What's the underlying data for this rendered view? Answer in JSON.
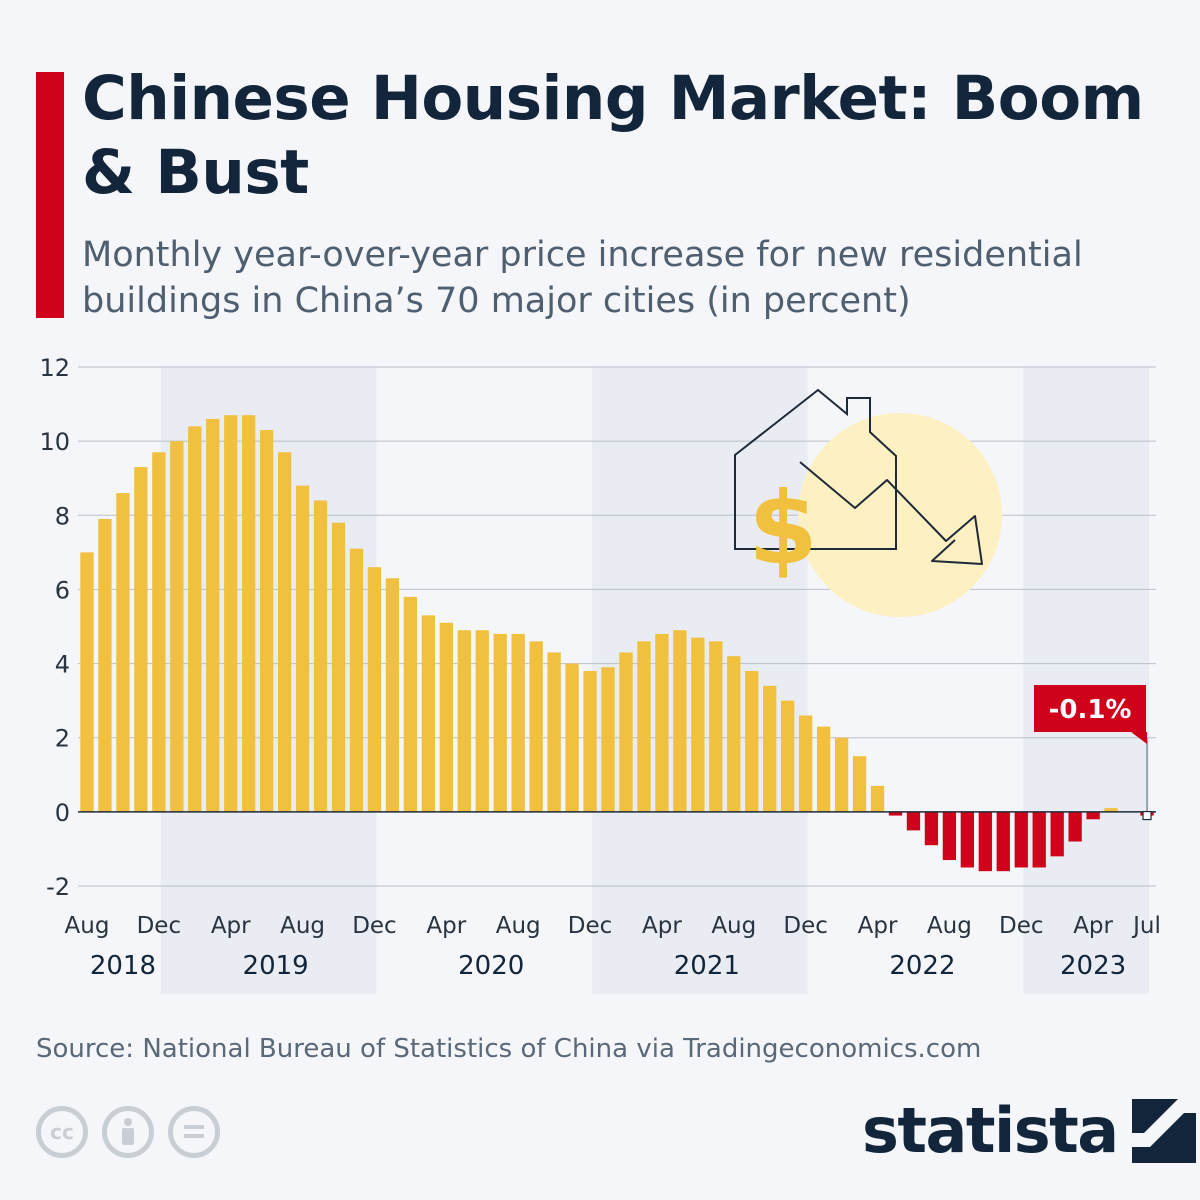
{
  "header": {
    "title": "Chinese Housing Market: Boom & Bust",
    "subtitle": "Monthly year-over-year price increase for new residential buildings in China’s 70 major cities (in percent)"
  },
  "footer": {
    "source": "Source: National Bureau of Statistics of China via Tradingeconomics.com",
    "brand": "statista",
    "license_icons": [
      "cc-icon",
      "attribution-icon",
      "no-derivatives-icon"
    ]
  },
  "colors": {
    "positive_bar": "#f0c03e",
    "negative_bar": "#d0021b",
    "accent": "#d0021b",
    "band": "#e9edf3",
    "gridline": "#b9c0c9",
    "title": "#13253a"
  },
  "chart_data": {
    "type": "bar",
    "x_start": "2018-08",
    "x_end": "2023-07",
    "categories": [
      "Aug 2018",
      "Sep 2018",
      "Oct 2018",
      "Nov 2018",
      "Dec 2018",
      "Jan 2019",
      "Feb 2019",
      "Mar 2019",
      "Apr 2019",
      "May 2019",
      "Jun 2019",
      "Jul 2019",
      "Aug 2019",
      "Sep 2019",
      "Oct 2019",
      "Nov 2019",
      "Dec 2019",
      "Jan 2020",
      "Feb 2020",
      "Mar 2020",
      "Apr 2020",
      "May 2020",
      "Jun 2020",
      "Jul 2020",
      "Aug 2020",
      "Sep 2020",
      "Oct 2020",
      "Nov 2020",
      "Dec 2020",
      "Jan 2021",
      "Feb 2021",
      "Mar 2021",
      "Apr 2021",
      "May 2021",
      "Jun 2021",
      "Jul 2021",
      "Aug 2021",
      "Sep 2021",
      "Oct 2021",
      "Nov 2021",
      "Dec 2021",
      "Jan 2022",
      "Feb 2022",
      "Mar 2022",
      "Apr 2022",
      "May 2022",
      "Jun 2022",
      "Jul 2022",
      "Aug 2022",
      "Sep 2022",
      "Oct 2022",
      "Nov 2022",
      "Dec 2022",
      "Jan 2023",
      "Feb 2023",
      "Mar 2023",
      "Apr 2023",
      "May 2023",
      "Jun 2023",
      "Jul 2023"
    ],
    "values": [
      7.0,
      7.9,
      8.6,
      9.3,
      9.7,
      10.0,
      10.4,
      10.6,
      10.7,
      10.7,
      10.3,
      9.7,
      8.8,
      8.4,
      7.8,
      7.1,
      6.6,
      6.3,
      5.8,
      5.3,
      5.1,
      4.9,
      4.9,
      4.8,
      4.8,
      4.6,
      4.3,
      4.0,
      3.8,
      3.9,
      4.3,
      4.6,
      4.8,
      4.9,
      4.7,
      4.6,
      4.2,
      3.8,
      3.4,
      3.0,
      2.6,
      2.3,
      2.0,
      1.5,
      0.7,
      -0.1,
      -0.5,
      -0.9,
      -1.3,
      -1.5,
      -1.6,
      -1.6,
      -1.5,
      -1.5,
      -1.2,
      -0.8,
      -0.2,
      0.1,
      0.0,
      -0.1
    ],
    "ylim": [
      -2,
      12
    ],
    "yticks": [
      12,
      10,
      8,
      6,
      4,
      2,
      0,
      -2
    ],
    "x_tick_labels": [
      "Aug",
      "Dec",
      "Apr",
      "Aug",
      "Dec",
      "Apr",
      "Aug",
      "Dec",
      "Apr",
      "Aug",
      "Dec",
      "Apr",
      "Aug",
      "Dec",
      "Apr",
      "Jul"
    ],
    "x_tick_indices": [
      0,
      4,
      8,
      12,
      16,
      20,
      24,
      28,
      32,
      36,
      40,
      44,
      48,
      52,
      56,
      59
    ],
    "years": [
      {
        "label": "2018",
        "start": 0,
        "end": 4
      },
      {
        "label": "2019",
        "start": 5,
        "end": 16
      },
      {
        "label": "2020",
        "start": 17,
        "end": 28
      },
      {
        "label": "2021",
        "start": 29,
        "end": 40
      },
      {
        "label": "2022",
        "start": 41,
        "end": 52
      },
      {
        "label": "2023",
        "start": 53,
        "end": 59
      }
    ],
    "shaded_years": [
      "2019",
      "2021",
      "2023"
    ],
    "annotation": {
      "text": "-0.1%",
      "index": 59
    },
    "grid": true,
    "legend": "none"
  }
}
